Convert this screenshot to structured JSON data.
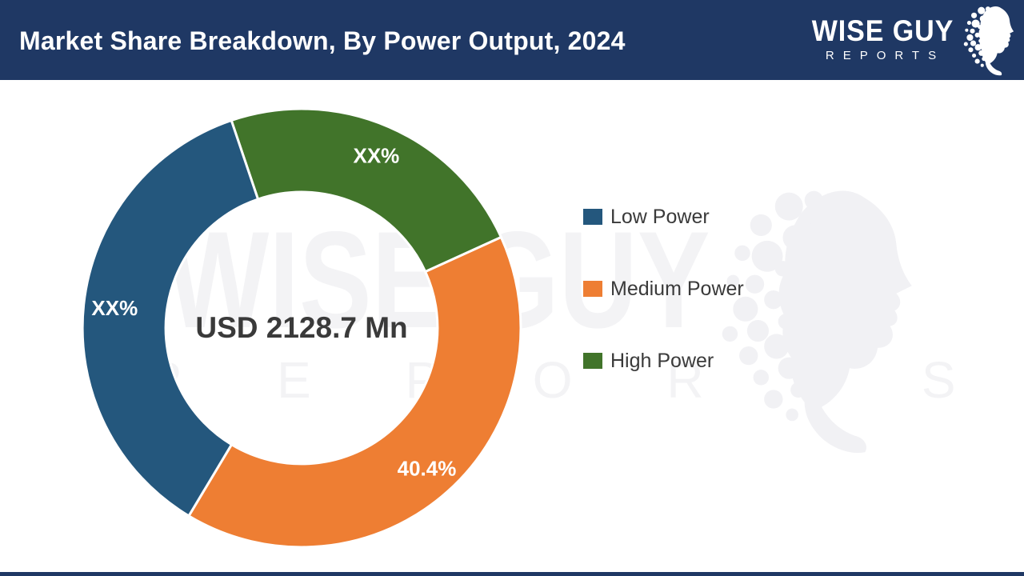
{
  "header": {
    "title": "Market Share Breakdown, By Power Output, 2024",
    "logo": {
      "line1": "WISE GUY",
      "line2": "REPORTS"
    }
  },
  "watermark": {
    "line1": "WISE GUY",
    "line2": "R E P O R T S"
  },
  "chart_data": {
    "type": "pie",
    "subtype": "donut",
    "title": "Market Share Breakdown, By Power Output, 2024",
    "center_label": "USD 2128.7 Mn",
    "units": "percent share of USD 2128.7 Mn",
    "start_angle_deg": -18.7,
    "draw_order": [
      "High Power",
      "Medium Power",
      "Low Power"
    ],
    "legend_position": "right",
    "series": [
      {
        "name": "Low Power",
        "label": "XX%",
        "share_pct": 36.2,
        "color": "#24577D"
      },
      {
        "name": "Medium Power",
        "label": "40.4%",
        "share_pct": 40.4,
        "color": "#EE7E33"
      },
      {
        "name": "High Power",
        "label": "XX%",
        "share_pct": 23.4,
        "color": "#41742A"
      }
    ]
  },
  "colors": {
    "header_bg": "#1F3864",
    "title_text": "#FFFFFF",
    "center_text": "#3A3A3A",
    "segment_label_text": "#FFFFFF",
    "legend_text": "#3A3A3A",
    "watermark": "#F3F3F5",
    "divider": "#FFFFFF"
  }
}
